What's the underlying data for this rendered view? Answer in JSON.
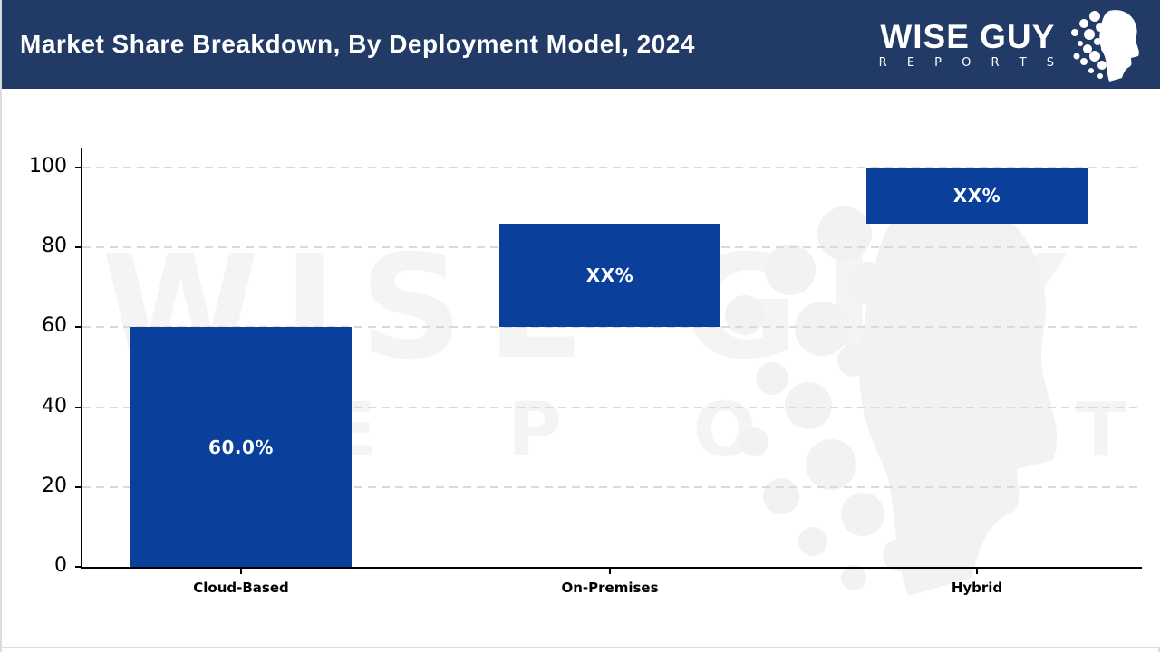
{
  "header": {
    "title": "Market Share Breakdown, By Deployment Model, 2024",
    "logo": {
      "line1": "WISE GUY",
      "line2": "R E P O R T S"
    }
  },
  "watermark": {
    "line1": "WISE GUY",
    "line2": "R E P O R T S"
  },
  "colors": {
    "header_bg": "#213a66",
    "bar": "#0a409c",
    "grid": "#dadada",
    "axis": "#000000",
    "watermark": "#f4f4f4",
    "bar_label": "#ffffff",
    "title_text": "#ffffff"
  },
  "chart_data": {
    "type": "bar",
    "subtype": "floating-segment-waterfall",
    "title": "Market Share Breakdown, By Deployment Model, 2024",
    "categories": [
      "Cloud-Based",
      "On-Premises",
      "Hybrid"
    ],
    "series": [
      {
        "name": "Market Share %",
        "segments": [
          {
            "category": "Cloud-Based",
            "start": 0,
            "end": 60,
            "label": "60.0%"
          },
          {
            "category": "On-Premises",
            "start": 60,
            "end": 86,
            "label": "XX%"
          },
          {
            "category": "Hybrid",
            "start": 86,
            "end": 100,
            "label": "XX%"
          }
        ]
      }
    ],
    "xlabel": "",
    "ylabel": "",
    "ylim": [
      0,
      100
    ],
    "yticks": [
      0,
      20,
      40,
      60,
      80,
      100
    ],
    "grid": "dashed-horizontal",
    "legend": "none"
  }
}
